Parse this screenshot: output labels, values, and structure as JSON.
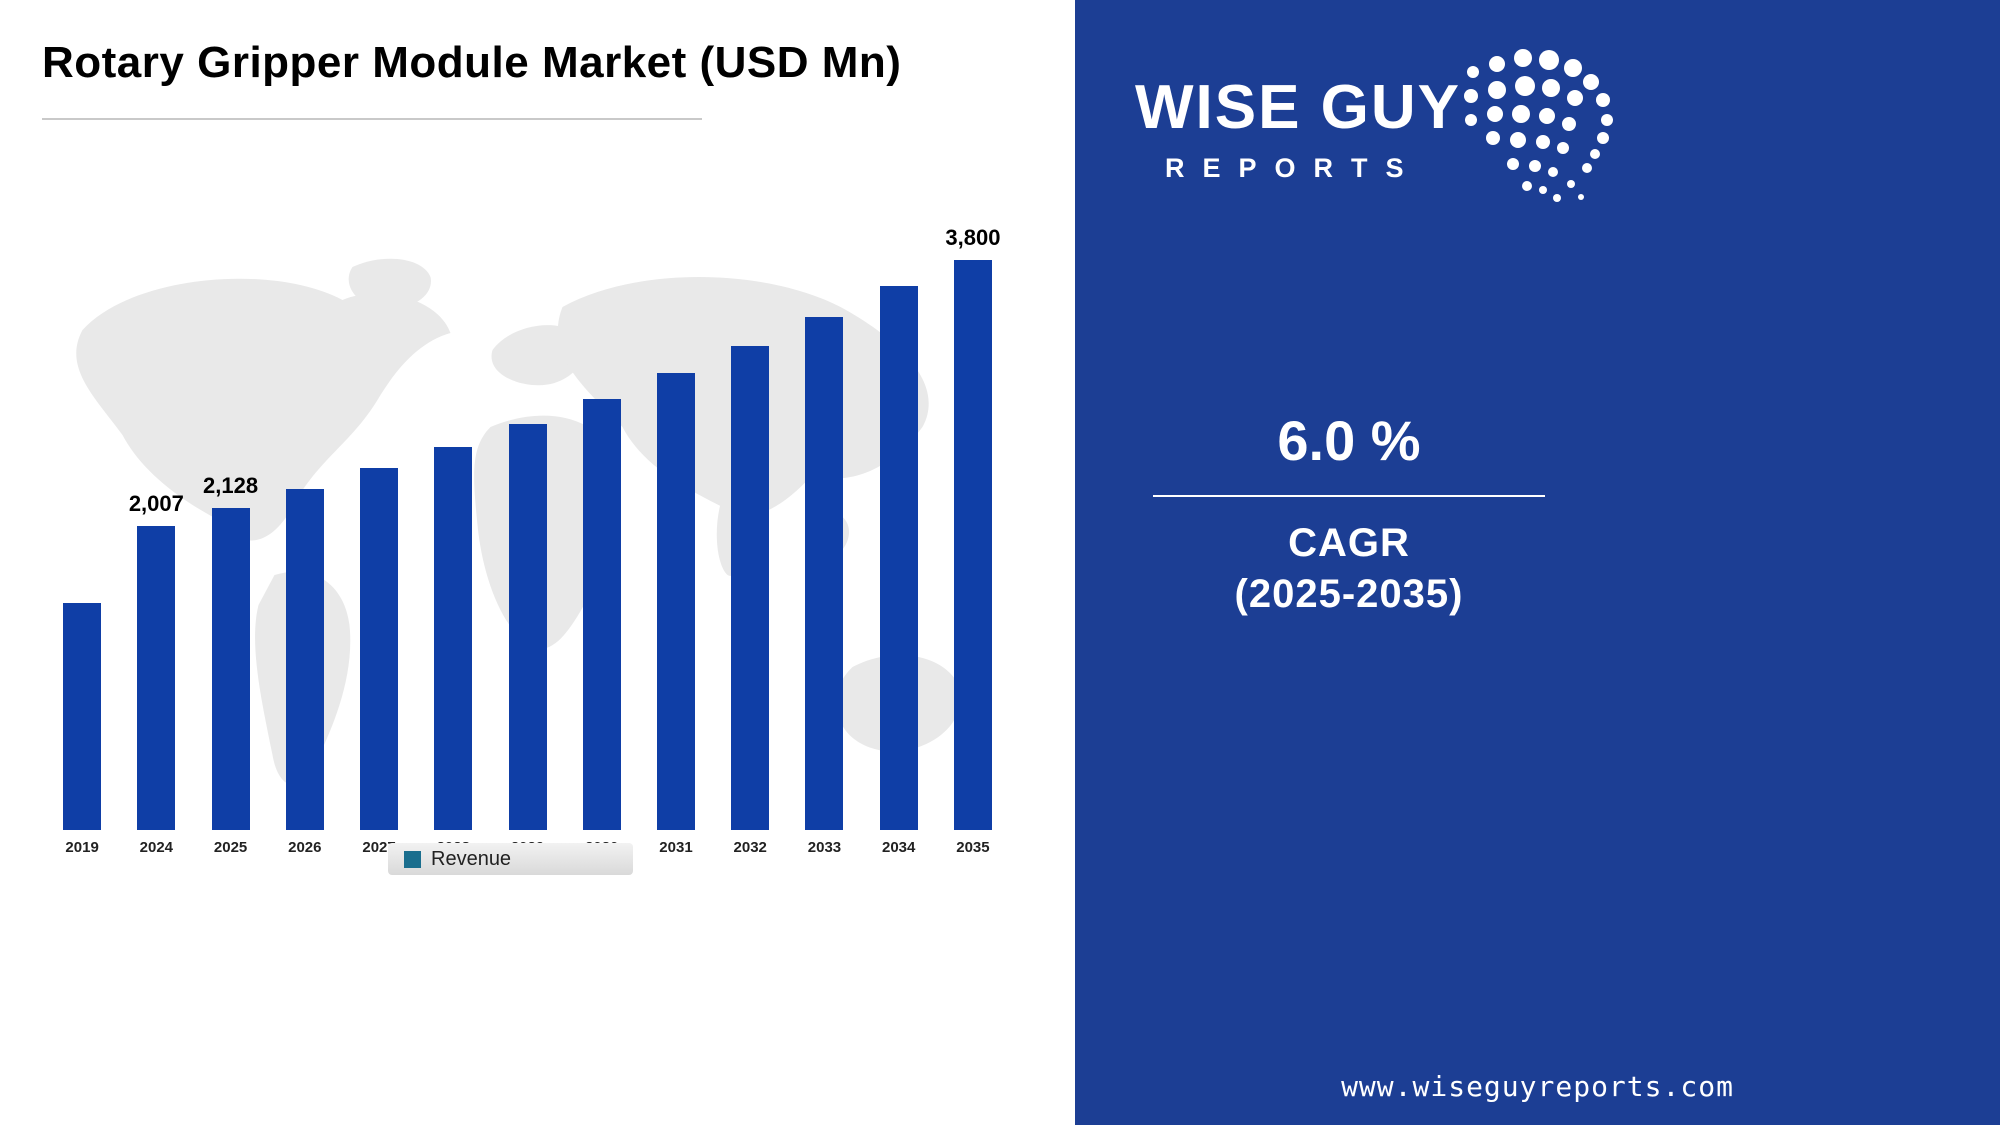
{
  "title": "Rotary Gripper Module Market (USD Mn)",
  "chart_data": {
    "type": "bar",
    "title": "Rotary Gripper Module Market (USD Mn)",
    "categories": [
      "2019",
      "2024",
      "2025",
      "2026",
      "2027",
      "2028",
      "2029",
      "2030",
      "2031",
      "2032",
      "2033",
      "2034",
      "2035"
    ],
    "values": [
      1500,
      2007,
      2128,
      2256,
      2391,
      2535,
      2687,
      2848,
      3019,
      3200,
      3392,
      3596,
      3800
    ],
    "value_labels": [
      "",
      "2,007",
      "2,128",
      "",
      "",
      "",
      "",
      "",
      "",
      "",
      "",
      "",
      "3,800"
    ],
    "xlabel": "",
    "ylabel": "",
    "ylim": [
      0,
      4000
    ],
    "grid": false,
    "legend_position": "bottom",
    "legend_entries": [
      "Revenue"
    ],
    "bar_color": "#0f3ea6"
  },
  "legend": {
    "label": "Revenue",
    "swatch_color": "#1a6e8e"
  },
  "side_panel": {
    "background": "#1c3e94",
    "logo": {
      "line1": "WISE GUY",
      "line2": "REPORTS"
    },
    "cagr_value": "6.0 %",
    "cagr_label_line1": "CAGR",
    "cagr_label_line2": "(2025-2035)",
    "website": "www.wiseguyreports.com"
  }
}
